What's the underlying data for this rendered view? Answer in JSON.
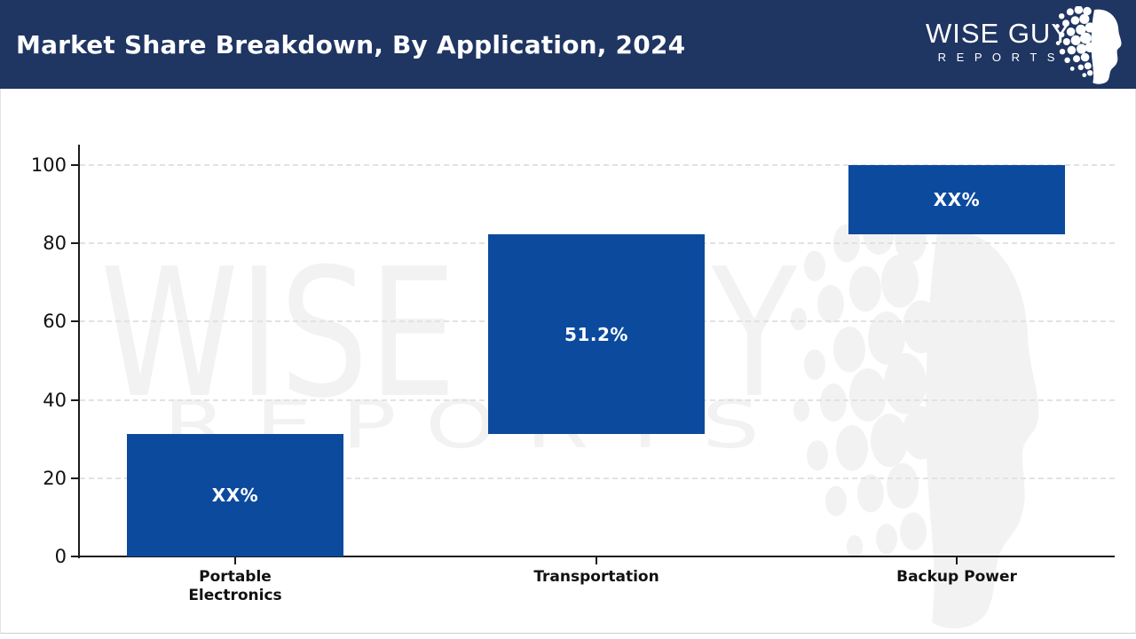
{
  "header": {
    "title": "Market Share Breakdown, By Application, 2024"
  },
  "logo": {
    "name": "WISE GUY",
    "tagline": "R E P O R T S"
  },
  "watermark": {
    "name": "WISE GUY",
    "tagline": "R E P O R T S"
  },
  "chart_data": {
    "type": "bar",
    "subtype": "waterfall",
    "title": "Market Share Breakdown, By Application, 2024",
    "categories": [
      "Portable\nElectronics",
      "Transportation",
      "Backup Power"
    ],
    "segments": [
      {
        "category": "Portable Electronics",
        "label": "XX%",
        "start": 0,
        "end": 31.2,
        "value": 31.2
      },
      {
        "category": "Transportation",
        "label": "51.2%",
        "start": 31.2,
        "end": 82.4,
        "value": 51.2
      },
      {
        "category": "Backup Power",
        "label": "XX%",
        "start": 82.4,
        "end": 100,
        "value": 17.6
      }
    ],
    "ylim": [
      0,
      100
    ],
    "yticks": [
      0,
      20,
      40,
      60,
      80,
      100
    ],
    "xlabel": "",
    "ylabel": "",
    "grid": "horizontal-dashed",
    "legend": "none",
    "bar_color": "#0c4a9e",
    "bar_label_color": "#ffffff"
  },
  "colors": {
    "header_bg": "#1f3562",
    "bar": "#0c4a9e",
    "axis": "#1a1a1a",
    "grid": "#e2e2e2",
    "watermark": "#f2f2f2"
  }
}
